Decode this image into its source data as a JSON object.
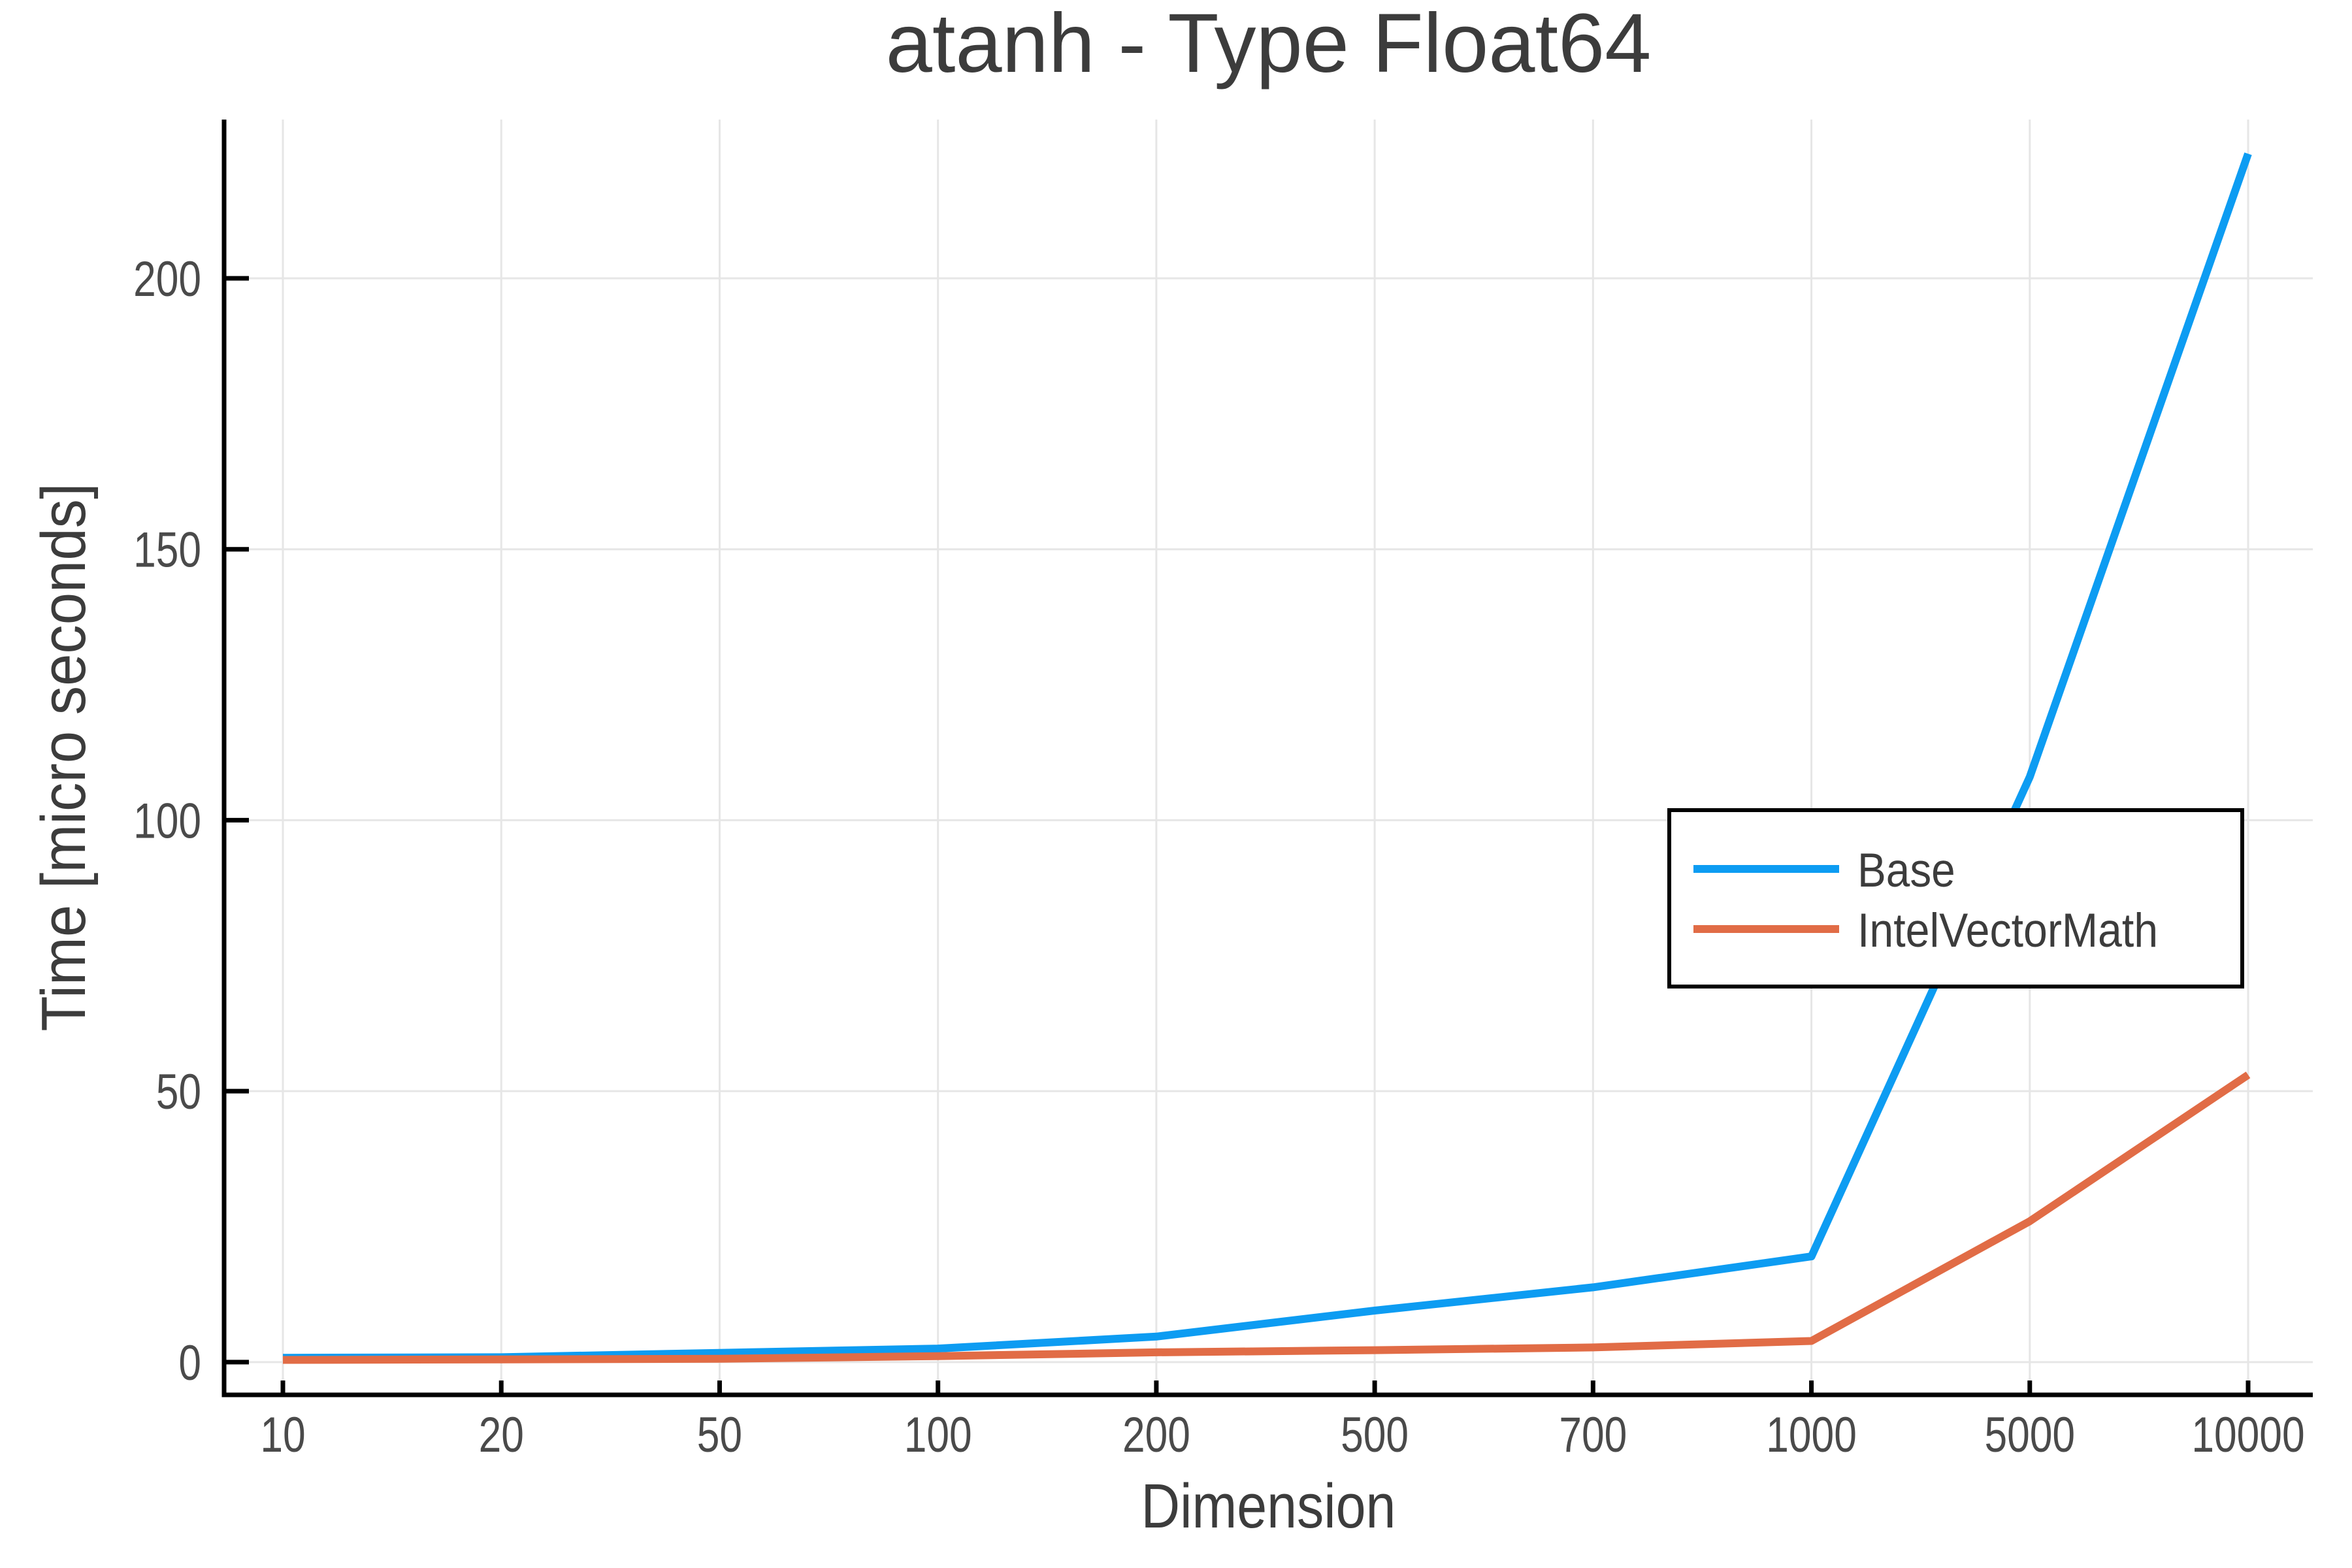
{
  "page": {
    "background": "#ffffff"
  },
  "chart_data": {
    "type": "line",
    "title": "atanh - Type Float64",
    "xlabel": "Dimension",
    "ylabel": "Time [micro seconds]",
    "categories": [
      10,
      20,
      50,
      100,
      200,
      500,
      700,
      1000,
      5000,
      10000
    ],
    "x_tick_labels": [
      "10",
      "20",
      "50",
      "100",
      "200",
      "500",
      "700",
      "1000",
      "5000",
      "10000"
    ],
    "y_ticks": [
      0,
      50,
      100,
      150,
      200
    ],
    "y_tick_labels": [
      "0",
      "50",
      "100",
      "150",
      "200"
    ],
    "ylim": [
      -6.05,
      229.3
    ],
    "x_axis_spacing": "categorical-even",
    "grid": true,
    "series": [
      {
        "name": "Base",
        "color": "#0d9cf2",
        "values": [
          0.8,
          0.9,
          1.7,
          2.5,
          4.7,
          9.5,
          13.8,
          19.5,
          108,
          223
        ]
      },
      {
        "name": "IntelVectorMath",
        "color": "#e16c46",
        "values": [
          0.4,
          0.5,
          0.6,
          1.1,
          1.8,
          2.2,
          2.7,
          3.9,
          26,
          53
        ]
      }
    ],
    "legend": {
      "position": "center-right",
      "background": "#ffffff",
      "border_color": "#000000"
    },
    "colors": {
      "grid": "#e6e6e6",
      "axis": "#000000",
      "title_text": "#3c3c3c",
      "tick_text": "#4a4a4a"
    }
  }
}
